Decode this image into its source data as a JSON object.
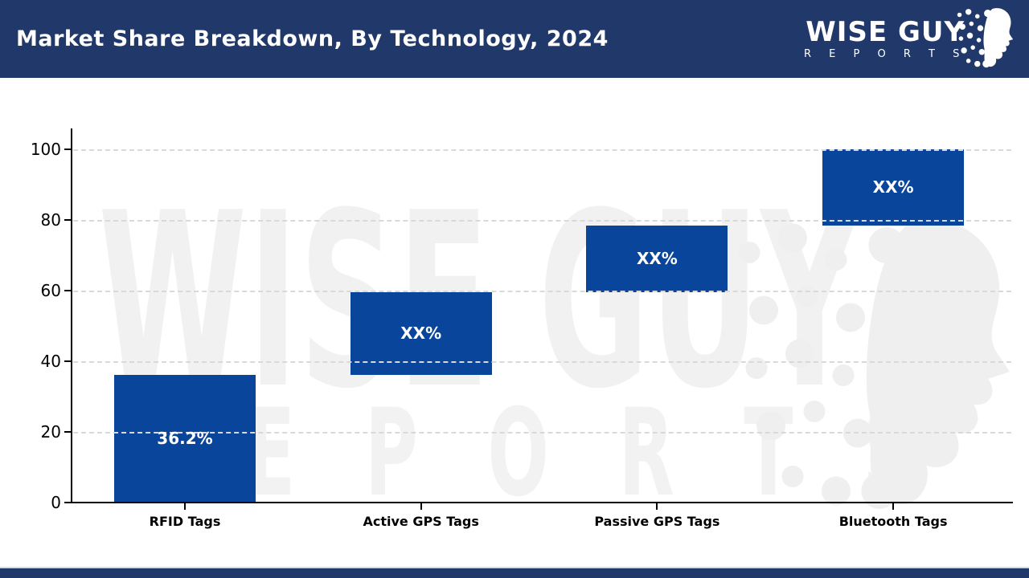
{
  "header": {
    "title": "Market Share Breakdown, By Technology, 2024",
    "logo": {
      "name_top": "WISE GUY",
      "name_bottom": "R E P O R T S"
    }
  },
  "watermark": {
    "line1": "WISE GUY",
    "line2": "R E P O R T S"
  },
  "chart_data": {
    "type": "bar",
    "subtype": "waterfall",
    "title": "Market Share Breakdown, By Technology, 2024",
    "categories": [
      "RFID Tags",
      "Active GPS Tags",
      "Passive GPS Tags",
      "Bluetooth Tags"
    ],
    "bars": [
      {
        "category": "RFID Tags",
        "start": 0,
        "end": 36.2,
        "label": "36.2%"
      },
      {
        "category": "Active GPS Tags",
        "start": 36.2,
        "end": 59.5,
        "label": "XX%"
      },
      {
        "category": "Passive GPS Tags",
        "start": 59.5,
        "end": 78.5,
        "label": "XX%"
      },
      {
        "category": "Bluetooth Tags",
        "start": 78.5,
        "end": 100,
        "label": "XX%"
      }
    ],
    "yticks": [
      0,
      20,
      40,
      60,
      80,
      100
    ],
    "ylim": [
      0,
      105
    ],
    "xlabel": "",
    "ylabel": "",
    "grid": "horizontal-dashed-over-bars",
    "legend": "none",
    "bar_color": "#0a459c",
    "bar_label_color": "#ffffff",
    "grid_color": "#d9d9d9",
    "axis_color": "#000000"
  },
  "colors": {
    "header_bg": "#20386a",
    "footer_bg": "#20386a",
    "watermark": "#f1f1f1"
  }
}
